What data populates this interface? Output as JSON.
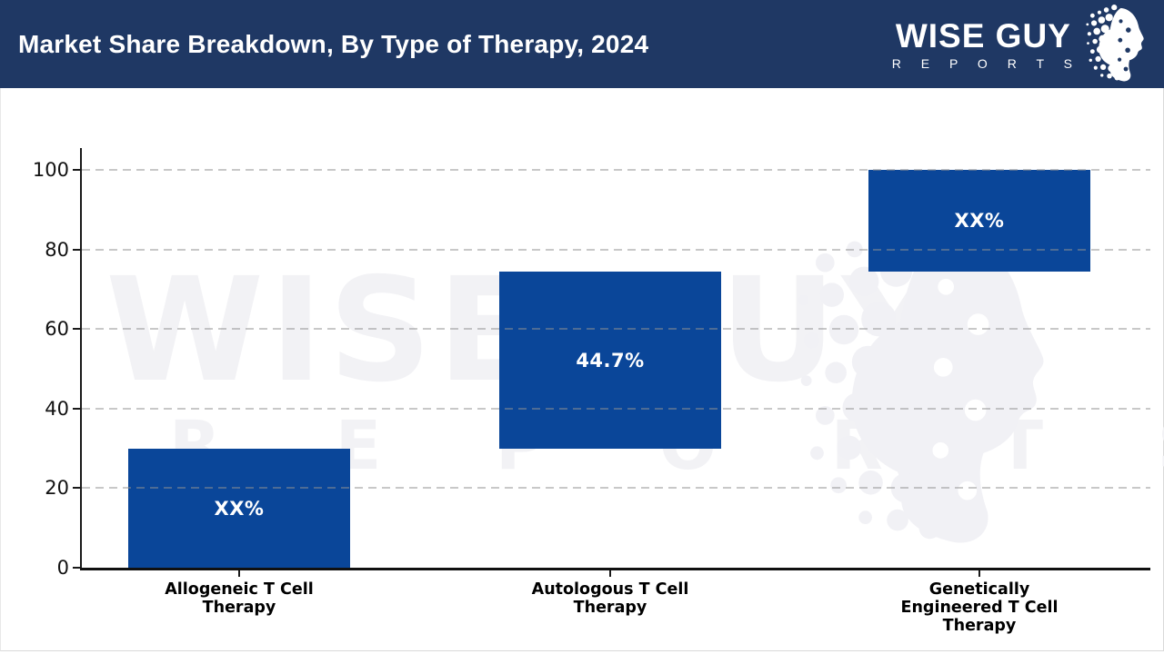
{
  "header": {
    "title": "Market Share Breakdown, By Type of Therapy, 2024",
    "logo": {
      "name": "WISE GUY",
      "tagline": "R E P O R T S"
    }
  },
  "watermark": {
    "name": "WISE GUY",
    "tagline": "R E P O R T S"
  },
  "colors": {
    "header_bg": "#1f3864",
    "bar_fill": "#0a4699",
    "value_label": "#ffffff",
    "axis": "#1a1a1a",
    "gridline": "#c9c9c9",
    "watermark": "#f2f2f5"
  },
  "chart_data": {
    "type": "bar",
    "subtype": "waterfall",
    "title": "Market Share Breakdown, By Type of Therapy, 2024",
    "categories": [
      "Allogeneic T Cell Therapy",
      "Autologous T Cell Therapy",
      "Genetically Engineered T Cell Therapy"
    ],
    "category_label_lines": [
      [
        "Allogeneic T Cell",
        "Therapy"
      ],
      [
        "Autologous T Cell",
        "Therapy"
      ],
      [
        "Genetically",
        "Engineered T Cell",
        "Therapy"
      ]
    ],
    "segments": [
      {
        "category": "Allogeneic T Cell Therapy",
        "start": 0,
        "end": 29.8,
        "value": 29.8,
        "label": "XX%"
      },
      {
        "category": "Autologous T Cell Therapy",
        "start": 29.8,
        "end": 74.5,
        "value": 44.7,
        "label": "44.7%"
      },
      {
        "category": "Genetically Engineered T Cell Therapy",
        "start": 74.5,
        "end": 100,
        "value": 25.5,
        "label": "XX%"
      }
    ],
    "xlabel": "",
    "ylabel": "",
    "ylim": [
      0,
      100
    ],
    "yticks": [
      0,
      20,
      40,
      60,
      80,
      100
    ],
    "grid": "horizontal-dashed",
    "legend": "none"
  }
}
